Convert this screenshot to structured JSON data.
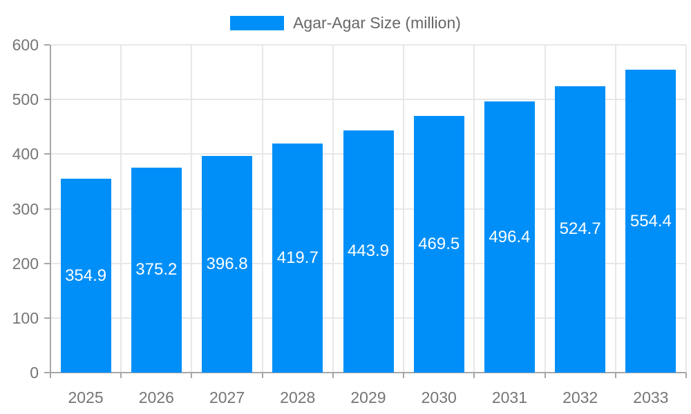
{
  "chart_data": {
    "type": "bar",
    "title": "Agar-Agar Size (million)",
    "categories": [
      "2025",
      "2026",
      "2027",
      "2028",
      "2029",
      "2030",
      "2031",
      "2032",
      "2033"
    ],
    "values": [
      354.9,
      375.2,
      396.8,
      419.7,
      443.9,
      469.5,
      496.4,
      524.7,
      554.4
    ],
    "xlabel": "",
    "ylabel": "",
    "ylim": [
      0,
      600
    ],
    "ytick_step": 100,
    "ytick_labels": [
      "0",
      "100",
      "200",
      "300",
      "400",
      "500",
      "600"
    ],
    "grid": true,
    "legend": {
      "position": "top",
      "label": "Agar-Agar Size (million)"
    },
    "colors": {
      "bar": "#008FF8",
      "grid_line": "#e7e7e7",
      "axis_line": "#a6a6a6",
      "tick_text": "#757575",
      "legend_text": "#666666",
      "bar_label_text": "#ffffff",
      "background": "#ffffff"
    }
  }
}
